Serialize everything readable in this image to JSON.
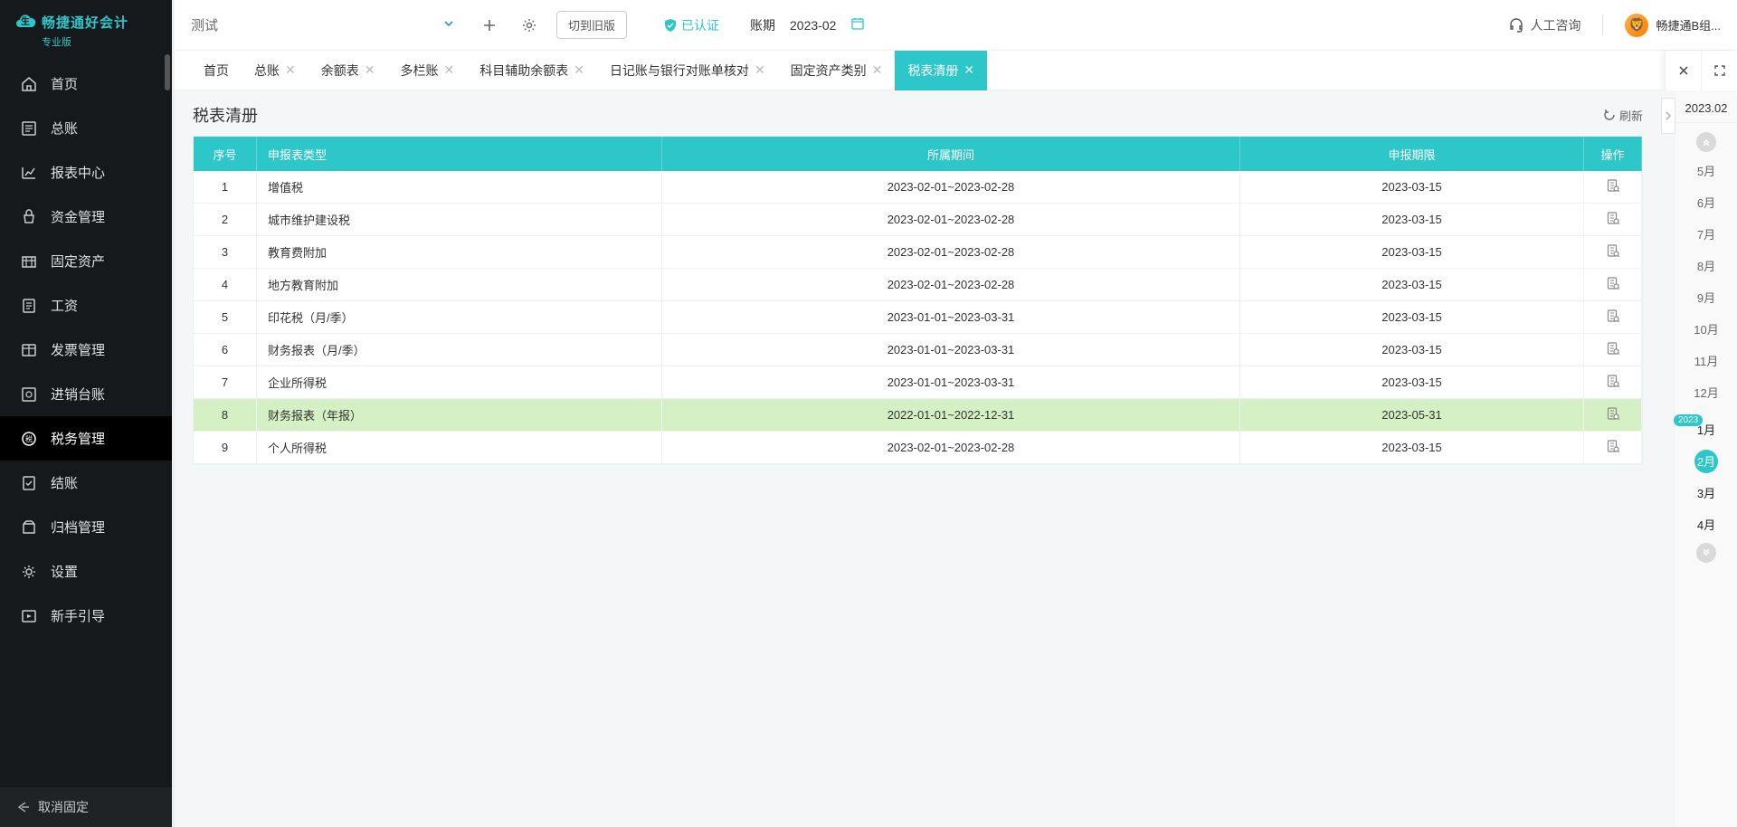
{
  "brand": {
    "name": "畅捷通好会计",
    "edition": "专业版"
  },
  "sidebar": {
    "items": [
      {
        "label": "首页"
      },
      {
        "label": "总账"
      },
      {
        "label": "报表中心"
      },
      {
        "label": "资金管理"
      },
      {
        "label": "固定资产"
      },
      {
        "label": "工资"
      },
      {
        "label": "发票管理"
      },
      {
        "label": "进销台账"
      },
      {
        "label": "税务管理"
      },
      {
        "label": "结账"
      },
      {
        "label": "归档管理"
      },
      {
        "label": "设置"
      },
      {
        "label": "新手引导"
      }
    ],
    "active_index": 8,
    "unpin_label": "取消固定"
  },
  "topbar": {
    "company": "测试",
    "switch_label": "切到旧版",
    "verified_label": "已认证",
    "period_label": "账期",
    "period_value": "2023-02",
    "support_label": "人工咨询",
    "user_name": "畅捷通B组...",
    "avatar_emoji": "🦁"
  },
  "tabs": [
    {
      "label": "首页",
      "closable": false
    },
    {
      "label": "总账",
      "closable": true
    },
    {
      "label": "余额表",
      "closable": true
    },
    {
      "label": "多栏账",
      "closable": true
    },
    {
      "label": "科目辅助余额表",
      "closable": true
    },
    {
      "label": "日记账与银行对账单核对",
      "closable": true
    },
    {
      "label": "固定资产类别",
      "closable": true
    },
    {
      "label": "税表清册",
      "closable": true
    }
  ],
  "active_tab_index": 7,
  "page": {
    "title": "税表清册",
    "refresh_label": "刷新",
    "columns": {
      "idx": "序号",
      "type": "申报表类型",
      "period": "所属期间",
      "deadline": "申报期限",
      "op": "操作"
    },
    "rows": [
      {
        "idx": "1",
        "type": "增值税",
        "period": "2023-02-01~2023-02-28",
        "deadline": "2023-03-15",
        "hl": false
      },
      {
        "idx": "2",
        "type": "城市维护建设税",
        "period": "2023-02-01~2023-02-28",
        "deadline": "2023-03-15",
        "hl": false
      },
      {
        "idx": "3",
        "type": "教育费附加",
        "period": "2023-02-01~2023-02-28",
        "deadline": "2023-03-15",
        "hl": false
      },
      {
        "idx": "4",
        "type": "地方教育附加",
        "period": "2023-02-01~2023-02-28",
        "deadline": "2023-03-15",
        "hl": false
      },
      {
        "idx": "5",
        "type": "印花税（月/季）",
        "period": "2023-01-01~2023-03-31",
        "deadline": "2023-03-15",
        "hl": false
      },
      {
        "idx": "6",
        "type": "财务报表（月/季）",
        "period": "2023-01-01~2023-03-31",
        "deadline": "2023-03-15",
        "hl": false
      },
      {
        "idx": "7",
        "type": "企业所得税",
        "period": "2023-01-01~2023-03-31",
        "deadline": "2023-03-15",
        "hl": false
      },
      {
        "idx": "8",
        "type": "财务报表（年报）",
        "period": "2022-01-01~2022-12-31",
        "deadline": "2023-05-31",
        "hl": true
      },
      {
        "idx": "9",
        "type": "个人所得税",
        "period": "2023-02-01~2023-02-28",
        "deadline": "2023-03-15",
        "hl": false
      }
    ]
  },
  "date_panel": {
    "header": "2023.02",
    "year_badge": "2023",
    "months_top": [
      "5月",
      "6月",
      "7月",
      "8月",
      "9月",
      "10月",
      "11月",
      "12月"
    ],
    "months_bottom": [
      "1月",
      "2月",
      "3月",
      "4月"
    ],
    "active_month": "2月"
  },
  "colors": {
    "accent": "#2ec7c9",
    "sidebar_bg": "#16191c",
    "row_highlight": "#d4f0c4",
    "border": "#eef2f2"
  }
}
